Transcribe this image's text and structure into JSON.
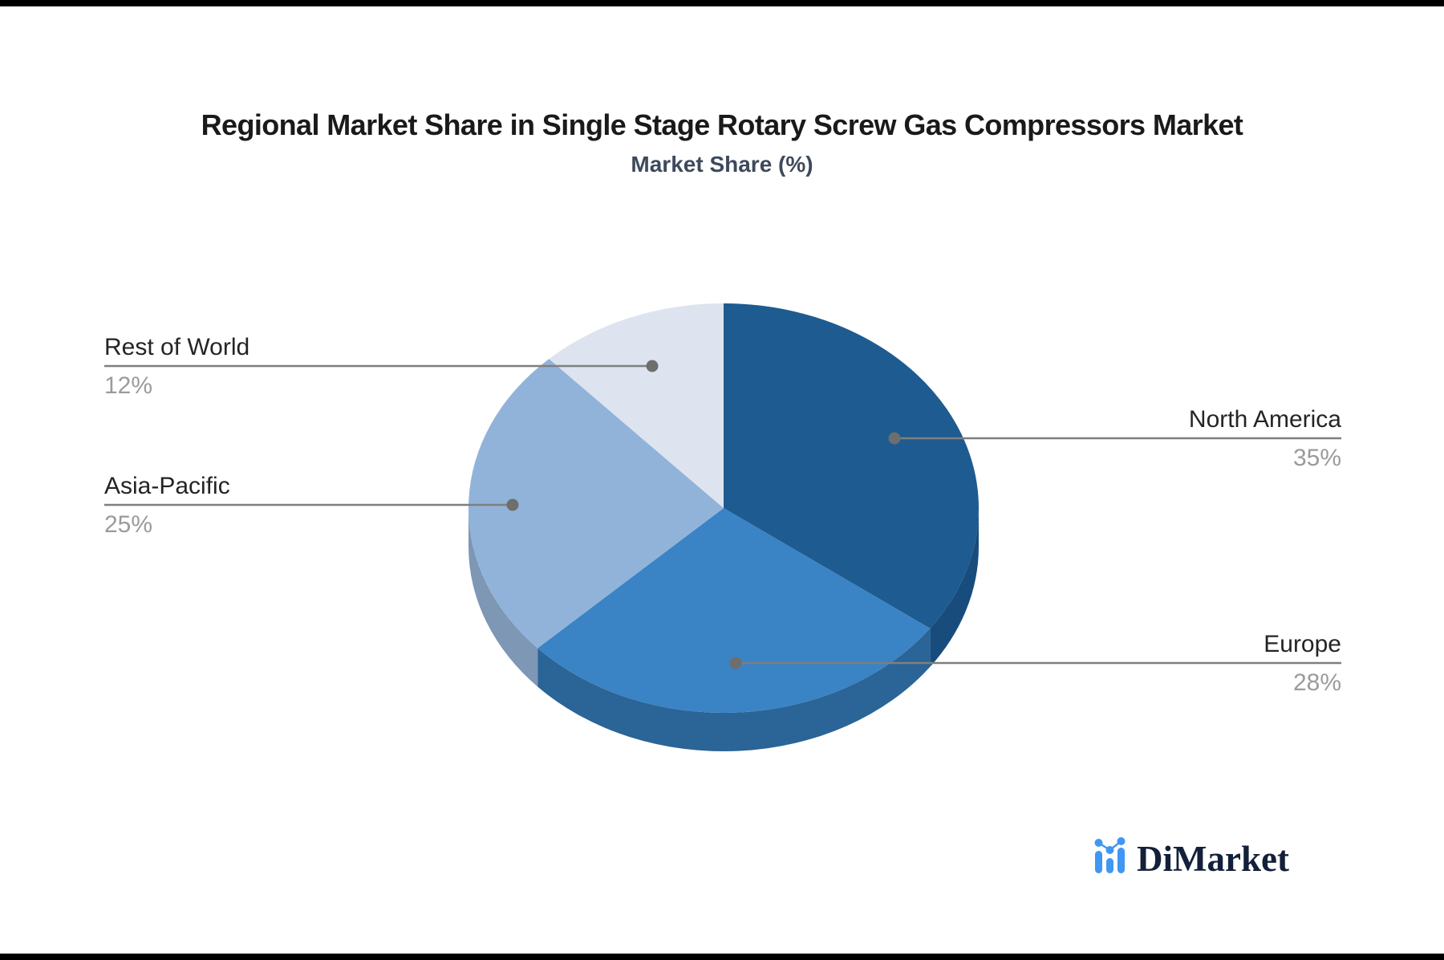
{
  "title": "Regional Market Share in Single Stage Rotary Screw Gas Compressors Market",
  "subtitle": "Market Share (%)",
  "chart_data": {
    "type": "pie",
    "effect": "3d",
    "unit": "%",
    "start_angle_deg": -90,
    "direction": "clockwise",
    "title": "Regional Market Share in Single Stage Rotary Screw Gas Compressors Market",
    "subtitle": "Market Share (%)",
    "slices": [
      {
        "label": "North America",
        "value": 35,
        "display": "35%",
        "color": "#1e5b90",
        "side_color": "#174c7d",
        "callout_side": "right"
      },
      {
        "label": "Europe",
        "value": 28,
        "display": "28%",
        "color": "#3a84c5",
        "side_color": "#2b6496",
        "callout_side": "right"
      },
      {
        "label": "Asia-Pacific",
        "value": 25,
        "display": "25%",
        "color": "#92b3d9",
        "side_color": "#7d97b5",
        "callout_side": "left"
      },
      {
        "label": "Rest of World",
        "value": 12,
        "display": "12%",
        "color": "#dde4ef",
        "side_color": "#c2ccd9",
        "callout_side": "left"
      }
    ],
    "legend": "none",
    "callout_line_color": "#7f7f7f",
    "callout_dot_color": "#6e6e6e",
    "percent_text_color": "#9b9b9b",
    "label_text_color": "#242424"
  },
  "branding": {
    "logo_text": "DiMarket",
    "logo_icon": "bar-line-chart-icon",
    "logo_icon_color": "#3f97f3",
    "logo_text_color": "#13203a"
  }
}
